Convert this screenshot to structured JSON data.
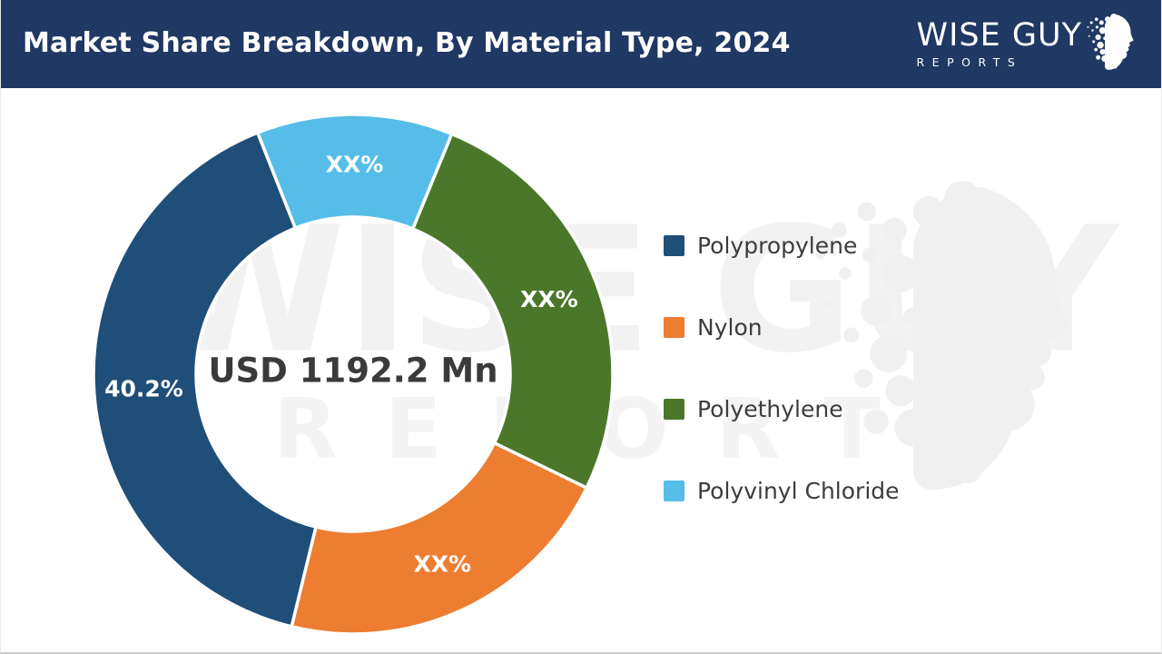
{
  "header": {
    "title": "Market Share Breakdown, By Material Type, 2024",
    "bg_color": "#1f3864",
    "logo": {
      "wordmark": "WISE GUY",
      "subtext": "REPORTS"
    }
  },
  "watermark": {
    "line1": "WISE GUY",
    "line2": "REPORTS"
  },
  "chart_data": {
    "type": "donut",
    "title": "Market Share Breakdown, By Material Type, 2024",
    "center_label": "USD 1192.2 Mn",
    "legend_position": "right",
    "start_angle_deg": 193.7,
    "draw_order": [
      "Polypropylene",
      "Polyvinyl Chloride",
      "Polyethylene",
      "Nylon"
    ],
    "segments": [
      {
        "name": "Polypropylene",
        "value_pct": 40.2,
        "display_label": "40.2%",
        "color": "#1f4e79"
      },
      {
        "name": "Nylon",
        "value_pct": 21.6,
        "display_label": "XX%",
        "color": "#ed7d31"
      },
      {
        "name": "Polyethylene",
        "value_pct": 26.0,
        "display_label": "XX%",
        "color": "#4a7729"
      },
      {
        "name": "Polyvinyl Chloride",
        "value_pct": 12.2,
        "display_label": "XX%",
        "color": "#55bde8"
      }
    ]
  }
}
